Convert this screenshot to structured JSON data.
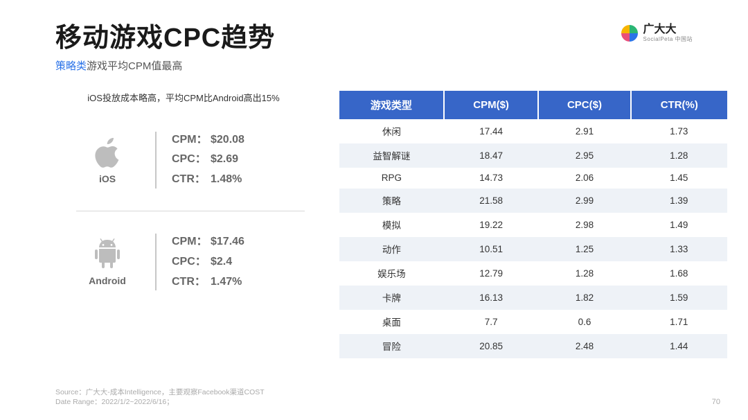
{
  "header": {
    "title": "移动游戏CPC趋势",
    "subtitle_accent": "策略类",
    "subtitle_rest": "游戏平均CPM值最高"
  },
  "logo": {
    "text_big": "广大大",
    "text_small": "SocialPeta 中国站",
    "colors": {
      "q1": "#f7b500",
      "q2": "#2bb673",
      "q3": "#2b73e8",
      "q4": "#e94f7a"
    }
  },
  "left": {
    "note": "iOS投放成本略高，平均CPM比Android高出15%",
    "platforms": [
      {
        "name": "iOS",
        "icon": "apple",
        "icon_color": "#bdbdbd",
        "metrics": {
          "CPM": "$20.08",
          "CPC": "$2.69",
          "CTR": "1.48%"
        }
      },
      {
        "name": "Android",
        "icon": "android",
        "icon_color": "#bdbdbd",
        "metrics": {
          "CPM": "$17.46",
          "CPC": "$2.4",
          "CTR": "1.47%"
        }
      }
    ]
  },
  "table": {
    "type": "table",
    "header_bg": "#3766c8",
    "header_color": "#ffffff",
    "row_odd_bg": "#ffffff",
    "row_even_bg": "#eef2f7",
    "text_color": "#333333",
    "font_size": 13.5,
    "columns": [
      "游戏类型",
      "CPM($)",
      "CPC($)",
      "CTR(%)"
    ],
    "rows": [
      [
        "休闲",
        "17.44",
        "2.91",
        "1.73"
      ],
      [
        "益智解谜",
        "18.47",
        "2.95",
        "1.28"
      ],
      [
        "RPG",
        "14.73",
        "2.06",
        "1.45"
      ],
      [
        "策略",
        "21.58",
        "2.99",
        "1.39"
      ],
      [
        "模拟",
        "19.22",
        "2.98",
        "1.49"
      ],
      [
        "动作",
        "10.51",
        "1.25",
        "1.33"
      ],
      [
        "娱乐场",
        "12.79",
        "1.28",
        "1.68"
      ],
      [
        "卡牌",
        "16.13",
        "1.82",
        "1.59"
      ],
      [
        "桌面",
        "7.7",
        "0.6",
        "1.71"
      ],
      [
        "冒险",
        "20.85",
        "2.48",
        "1.44"
      ]
    ]
  },
  "footer": {
    "source_label": "Source：",
    "source_text": "广大大-成本Intelligence，主要观察Facebook渠道COST",
    "date_label": "Date Range：",
    "date_text": "2022/1/2~2022/6/16；",
    "page_number": "70"
  }
}
